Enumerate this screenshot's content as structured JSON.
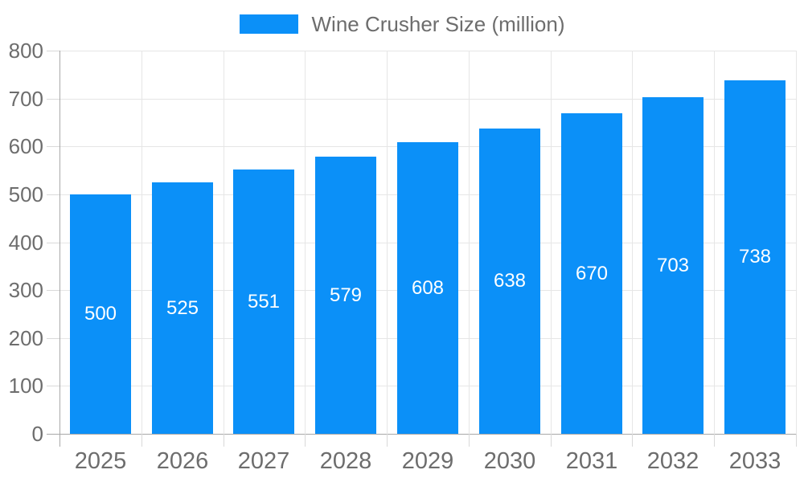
{
  "chart_data": {
    "type": "bar",
    "title": "Wine Crusher Size (million)",
    "categories": [
      "2025",
      "2026",
      "2027",
      "2028",
      "2029",
      "2030",
      "2031",
      "2032",
      "2033"
    ],
    "values": [
      500,
      525,
      551,
      579,
      608,
      638,
      670,
      703,
      738
    ],
    "xlabel": "",
    "ylabel": "",
    "ylim": [
      0,
      800
    ],
    "ytick_step": 100,
    "yticks": [
      "0",
      "100",
      "200",
      "300",
      "400",
      "500",
      "600",
      "700",
      "800"
    ],
    "grid": true,
    "legend_position": "top-center",
    "value_label_position": "inside-center"
  },
  "legend": {
    "label": "Wine Crusher Size (million)"
  },
  "colors": {
    "bar": "#0b90f8",
    "grid": "#e6e6e6",
    "tick": "#d9d9d9",
    "axis": "#a8a8a8",
    "text": "#6d6d6d",
    "value_label_text": "#ffffff",
    "background": "#ffffff"
  }
}
